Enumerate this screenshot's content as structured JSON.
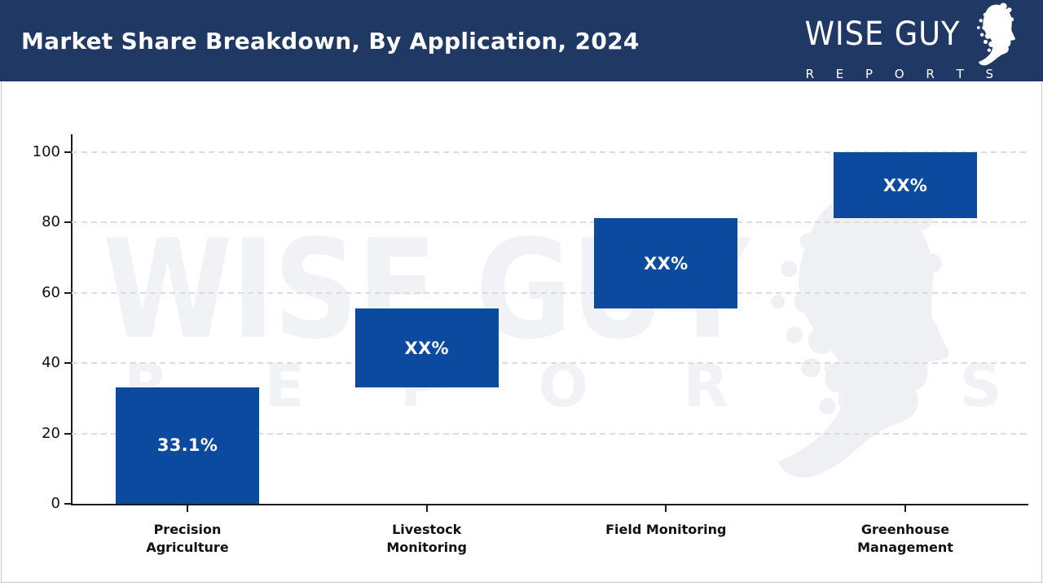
{
  "header": {
    "title": "Market Share Breakdown, By Application, 2024",
    "bg_color": "#1F3864",
    "logo": {
      "line1": "WISE GUY",
      "line2": "R  E  P  O  R  T  S"
    }
  },
  "watermark": {
    "line1": "WISE GUY",
    "line2": "R E P O R T S"
  },
  "chart_data": {
    "type": "bar",
    "subtype": "waterfall",
    "title": "Market Share Breakdown, By Application, 2024",
    "xlabel": "",
    "ylabel": "",
    "categories": [
      "Precision\nAgriculture",
      "Livestock\nMonitoring",
      "Field Monitoring",
      "Greenhouse\nManagement"
    ],
    "segments": [
      {
        "category": "Precision Agriculture",
        "start": 0,
        "end": 33.1,
        "label": "33.1%"
      },
      {
        "category": "Livestock Monitoring",
        "start": 33.1,
        "end": 55.5,
        "label": "XX%"
      },
      {
        "category": "Field Monitoring",
        "start": 55.5,
        "end": 81.2,
        "label": "XX%"
      },
      {
        "category": "Greenhouse Management",
        "start": 81.2,
        "end": 100,
        "label": "XX%"
      }
    ],
    "yticks": [
      0,
      20,
      40,
      60,
      80,
      100
    ],
    "ylim": [
      0,
      100
    ],
    "grid": "horizontal-dashed",
    "legend": "none",
    "bar_color": "#0B4A9E",
    "bar_label_color": "#FFFFFF",
    "axis_color": "#1A1A1A",
    "gridline_color": "#DCDCDC"
  }
}
